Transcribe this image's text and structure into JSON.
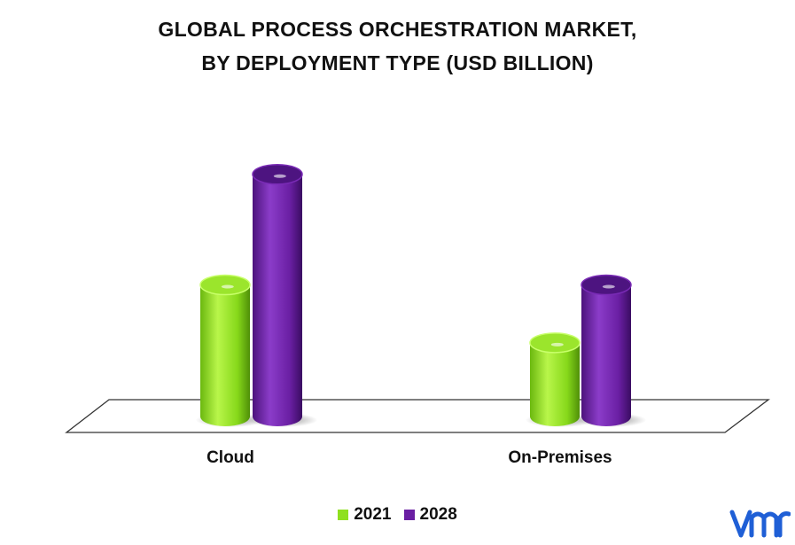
{
  "chart_data": {
    "type": "bar",
    "title_line1": "GLOBAL PROCESS ORCHESTRATION MARKET,",
    "title_line2": "BY DEPLOYMENT TYPE (USD BILLION)",
    "categories": [
      "Cloud",
      "On-Premises"
    ],
    "series": [
      {
        "name": "2021",
        "values": [
          5.0,
          2.8
        ],
        "color": "#8fe01f"
      },
      {
        "name": "2028",
        "values": [
          9.2,
          5.0
        ],
        "color": "#6a1fa3"
      }
    ],
    "ylim": [
      0,
      10
    ],
    "grid": false,
    "legend": "bottom"
  },
  "logo": {
    "text": "vm",
    "color": "#1f5fd6"
  }
}
